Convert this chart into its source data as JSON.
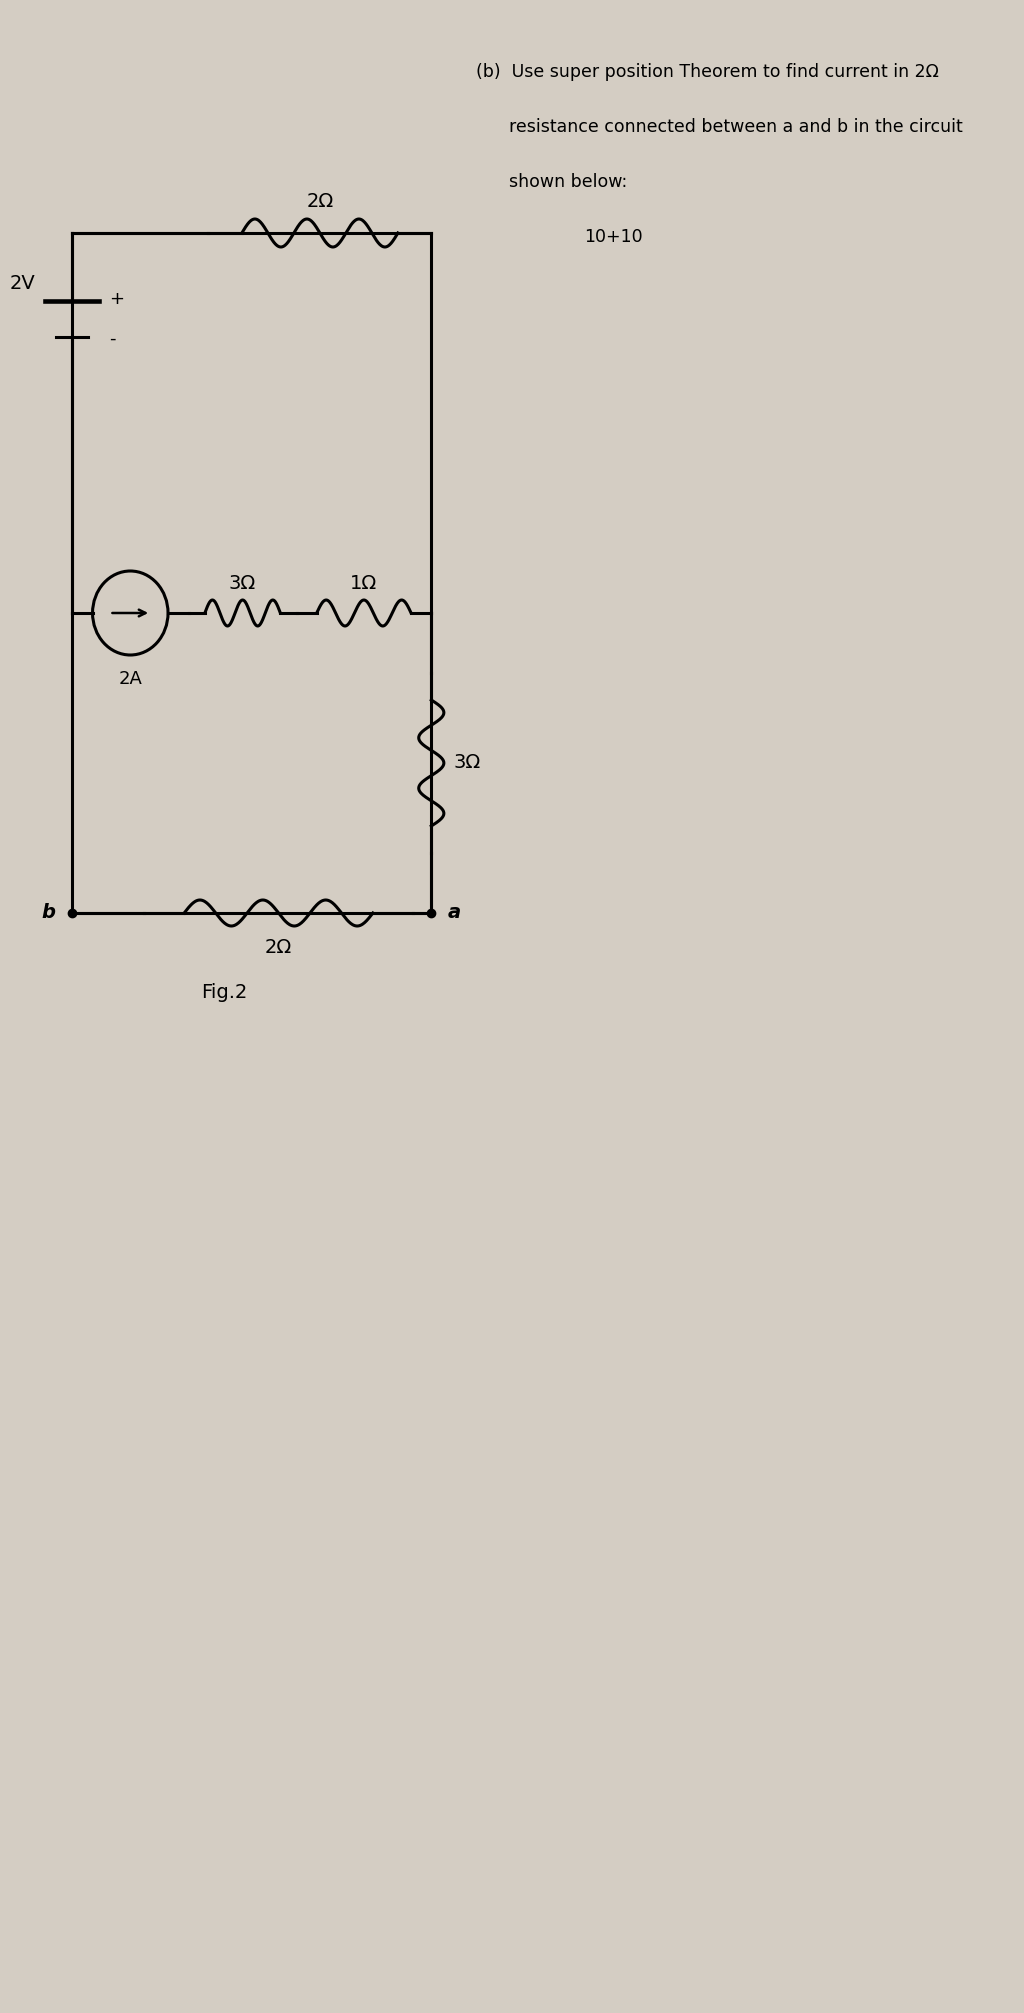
{
  "bg_color": "#d4cdc3",
  "title_line1": "(b)  Use super position Theorem to find current in 2Ω",
  "title_line2": "      resistance connected between a and b in the circuit",
  "title_line3": "      shown below:",
  "marks_text": "10+10",
  "fig_label": "Fig.2",
  "voltage_label": "2V",
  "current_label": "2A",
  "res_top": "2Ω",
  "res_mid_left": "3Ω",
  "res_mid_right": "1Ω",
  "res_right": "3Ω",
  "res_bottom": "2Ω",
  "node_a": "a",
  "node_b": "b"
}
